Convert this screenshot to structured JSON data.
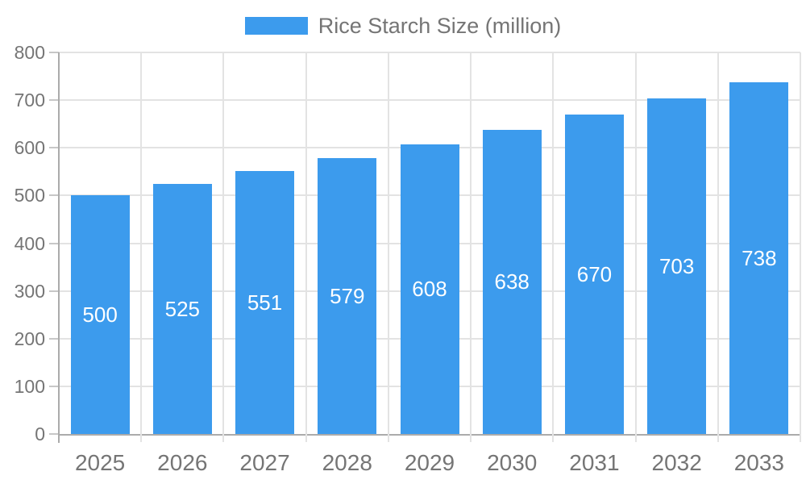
{
  "chart": {
    "legend_label": "Rice Starch Size (million)"
  },
  "chart_data": {
    "type": "bar",
    "title": "Rice Starch Size (million)",
    "categories": [
      "2025",
      "2026",
      "2027",
      "2028",
      "2029",
      "2030",
      "2031",
      "2032",
      "2033"
    ],
    "series": [
      {
        "name": "Rice Starch Size (million)",
        "values": [
          500,
          525,
          551,
          579,
          608,
          638,
          670,
          703,
          738
        ]
      }
    ],
    "value_labels": [
      500,
      525,
      551,
      579,
      608,
      638,
      670,
      703,
      738
    ],
    "xlabel": "",
    "ylabel": "",
    "ylim": [
      0,
      800
    ],
    "ytick_step": 100,
    "yticks": [
      0,
      100,
      200,
      300,
      400,
      500,
      600,
      700,
      800
    ],
    "grid": true,
    "legend_position": "top-center",
    "value_label_position": "inside-center",
    "colors": {
      "bar": "#3C9BED",
      "value_label": "#FFFFFF",
      "axis_text": "#757575",
      "axis_line": "#ABABAB",
      "gridline": "#E3E3E3",
      "tick": "#C7C7C7"
    }
  }
}
